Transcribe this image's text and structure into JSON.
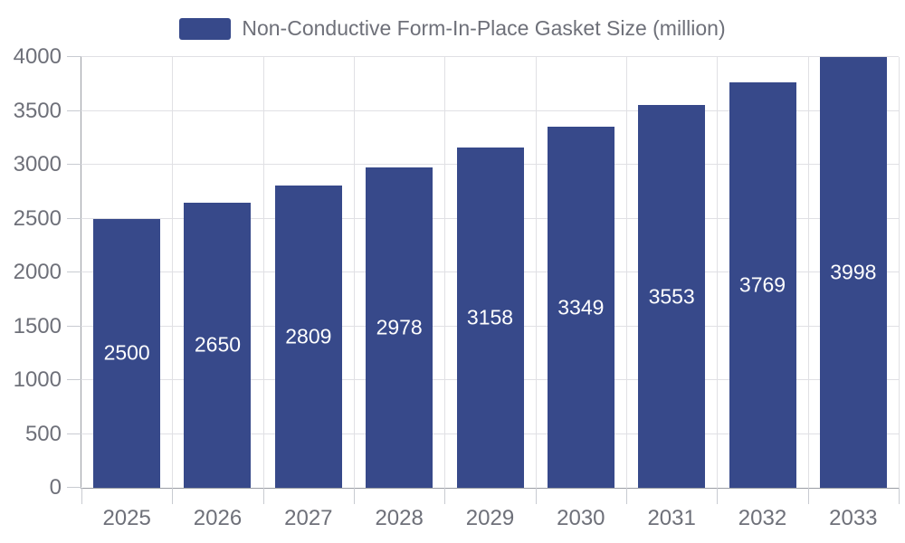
{
  "chart_data": {
    "type": "bar",
    "title": "Non-Conductive Form-In-Place Gasket Size (million)",
    "legend": {
      "label": "Non-Conductive Form-In-Place Gasket Size (million)",
      "position": "top-center"
    },
    "categories": [
      "2025",
      "2026",
      "2027",
      "2028",
      "2029",
      "2030",
      "2031",
      "2032",
      "2033"
    ],
    "values": [
      2500,
      2650,
      2809,
      2978,
      3158,
      3349,
      3553,
      3769,
      3998
    ],
    "xlabel": "",
    "ylabel": "",
    "ylim": [
      0,
      4000
    ],
    "ytick_interval": 500,
    "yticks": [
      0,
      500,
      1000,
      1500,
      2000,
      2500,
      3000,
      3500,
      4000
    ],
    "grid": true,
    "bar_label_position": "inside-center",
    "colors": {
      "bar": "#37498A",
      "bar_label": "#FFFFFF",
      "axis_label": "#6E7079",
      "axis_line": "#9A9DA4",
      "gridline": "#E0E0E4",
      "tick": "#C8CBD1",
      "legend_text": "#6E7079",
      "background": "#FFFFFF"
    }
  }
}
